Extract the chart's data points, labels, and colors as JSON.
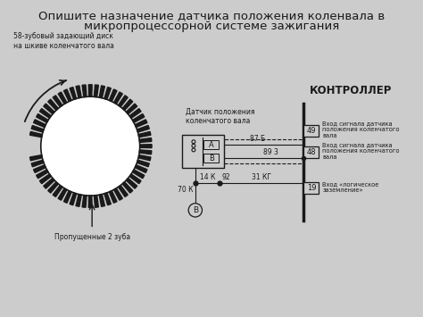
{
  "title_line1": "Опишите назначение датчика положения коленвала в",
  "title_line2": "микропроцессорной системе зажигания",
  "bg_color": "#cccccc",
  "text_color": "#1a1a1a",
  "label_disk": "58-зубовый задающий диск\nна шкиве коленчатого вала",
  "label_sensor": "Датчик положения\nколенчатого вала",
  "label_controller": "КОНТРОЛЛЕР",
  "label_missing": "Пропущенные 2 зуба",
  "label_87b": "87 Б",
  "label_893": "89 3",
  "label_14k": "14 К",
  "label_92": "92",
  "label_31kg": "31 КГ",
  "label_19": "19",
  "label_70k": "70 К",
  "label_49": "49",
  "label_48": "48",
  "label_A": "А",
  "label_B": "В",
  "label_B_ground": "В",
  "controller_text1": "Вход сигнала датчика\nположения коленчатого\nвала",
  "controller_text2": "Вход сигнала датчика\nположения коленчатого\nвала",
  "controller_text3": "Вход «логическое\nзаземление»"
}
